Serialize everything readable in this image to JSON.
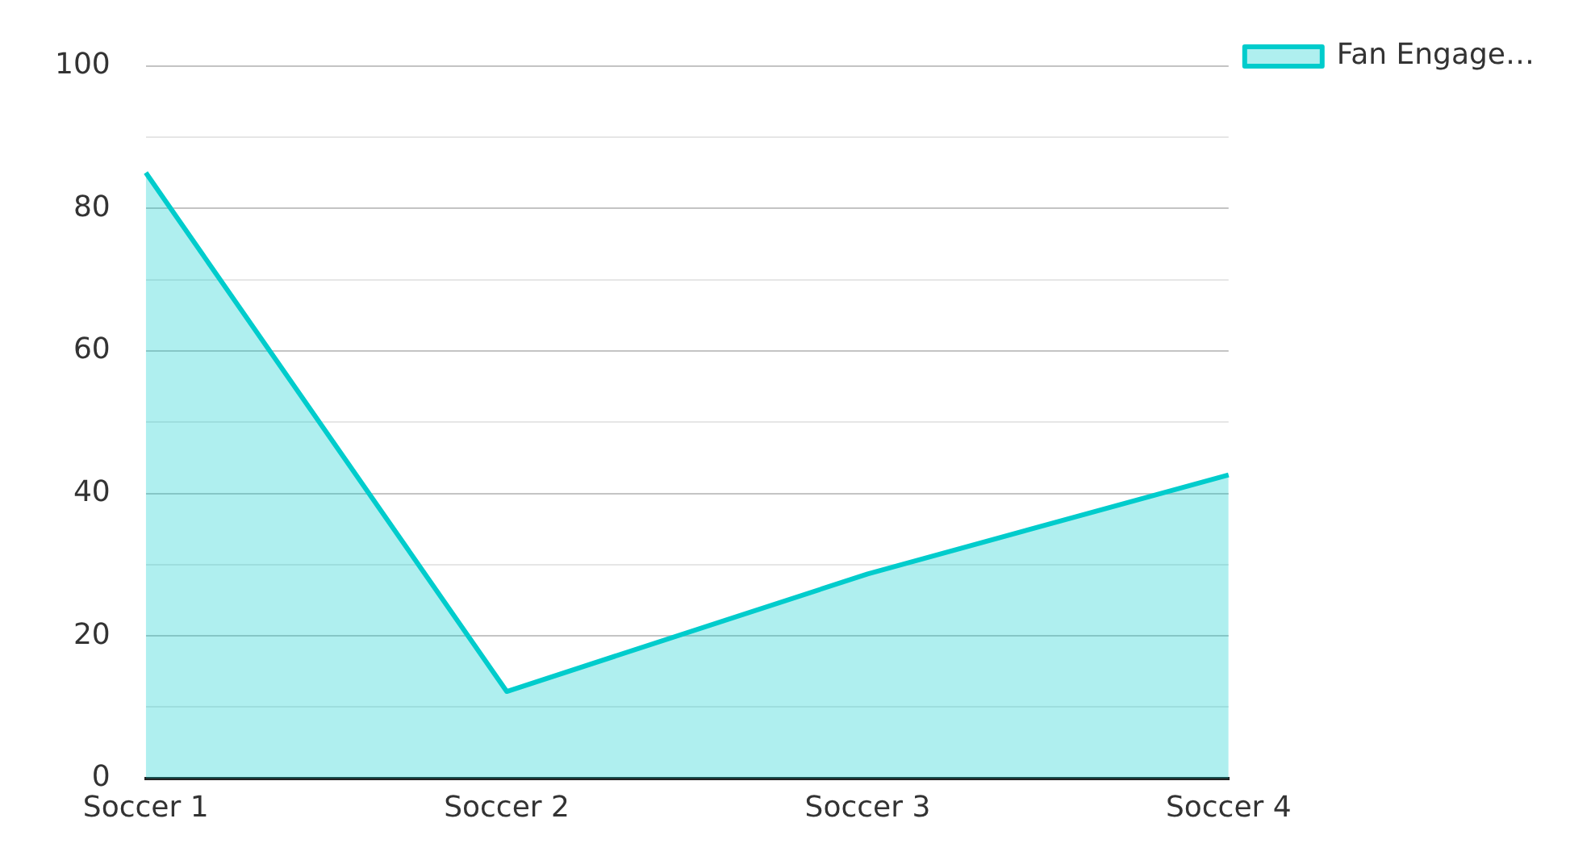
{
  "chart_data": {
    "type": "area",
    "categories": [
      "Soccer 1",
      "Soccer 2",
      "Soccer 3",
      "Soccer 4"
    ],
    "series": [
      {
        "name": "Fan Engage…",
        "color": "#00cccc",
        "values": [
          85,
          12.2,
          28.7,
          42.6
        ]
      }
    ],
    "ylim": [
      0,
      100
    ],
    "yticks": [
      0,
      {
        "value": 10,
        "label": null
      },
      20,
      {
        "value": 30,
        "label": null
      },
      40,
      {
        "value": 50,
        "label": null
      },
      60,
      {
        "value": 70,
        "label": null
      },
      80,
      {
        "value": 90,
        "label": null
      },
      100
    ],
    "grid": "y",
    "legend": "top right",
    "marker": "none",
    "line_style": "solid"
  }
}
